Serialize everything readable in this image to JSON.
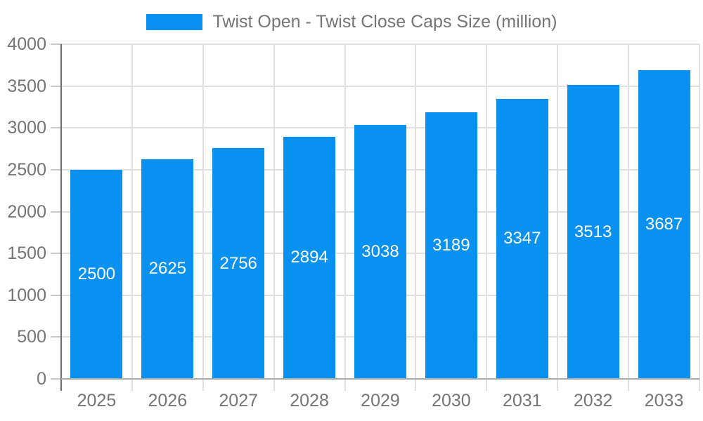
{
  "legend": {
    "label": "Twist Open - Twist Close Caps Size (million)"
  },
  "colors": {
    "bar": "#0991F2",
    "axis_text": "#757575",
    "legend_text": "#757575",
    "bar_label_text": "#ffffff",
    "gridline": "#e0e0e0",
    "y_axis_line": "#6e6e6e",
    "x_axis_line": "#ababab"
  },
  "chart_data": {
    "type": "bar",
    "title": "Twist Open - Twist Close Caps Size (million)",
    "categories": [
      "2025",
      "2026",
      "2027",
      "2028",
      "2029",
      "2030",
      "2031",
      "2032",
      "2033"
    ],
    "values": [
      2500,
      2625,
      2756,
      2894,
      3038,
      3189,
      3347,
      3513,
      3687
    ],
    "series_name": "Twist Open - Twist Close Caps Size (million)",
    "xlabel": "",
    "ylabel": "",
    "ylim": [
      0,
      4000
    ],
    "ytick_step": 500,
    "yticks": [
      0,
      500,
      1000,
      1500,
      2000,
      2500,
      3000,
      3500,
      4000
    ],
    "grid": true,
    "legend_position": "top",
    "bar_labels_inside": true
  }
}
